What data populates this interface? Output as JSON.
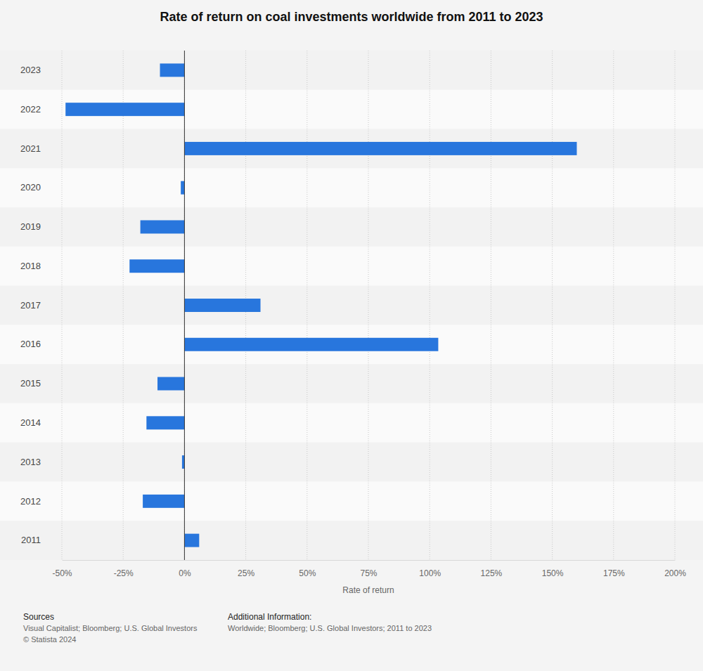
{
  "chart_data": {
    "type": "bar",
    "orientation": "horizontal",
    "title": "Rate of return on coal investments worldwide from 2011 to 2023",
    "x_label": "Rate of return",
    "categories": [
      "2023",
      "2022",
      "2021",
      "2020",
      "2019",
      "2018",
      "2017",
      "2016",
      "2015",
      "2014",
      "2013",
      "2012",
      "2011"
    ],
    "values": [
      -10,
      -48.5,
      160,
      -1.5,
      -18,
      -22.4,
      31,
      103.5,
      -11,
      -15.5,
      -1,
      -17,
      6
    ],
    "color": "#2876dd",
    "xlim": [
      -50,
      200
    ],
    "xticks": [
      {
        "value": -50,
        "label": "-50%"
      },
      {
        "value": -25,
        "label": "-25%"
      },
      {
        "value": 0,
        "label": "0%"
      },
      {
        "value": 25,
        "label": "25%"
      },
      {
        "value": 50,
        "label": "50%"
      },
      {
        "value": 75,
        "label": "75%"
      },
      {
        "value": 100,
        "label": "100%"
      },
      {
        "value": 125,
        "label": "125%"
      },
      {
        "value": 150,
        "label": "150%"
      },
      {
        "value": 175,
        "label": "175%"
      },
      {
        "value": 200,
        "label": "200%"
      }
    ],
    "grid": true,
    "sources_heading": "Sources",
    "sources": "Visual Capitalist; Bloomberg; U.S. Global Investors",
    "copyright": "© Statista 2024",
    "additional_info_heading": "Additional Information:",
    "additional_info": "Worldwide; Bloomberg; U.S. Global Investors; 2011 to 2023"
  }
}
